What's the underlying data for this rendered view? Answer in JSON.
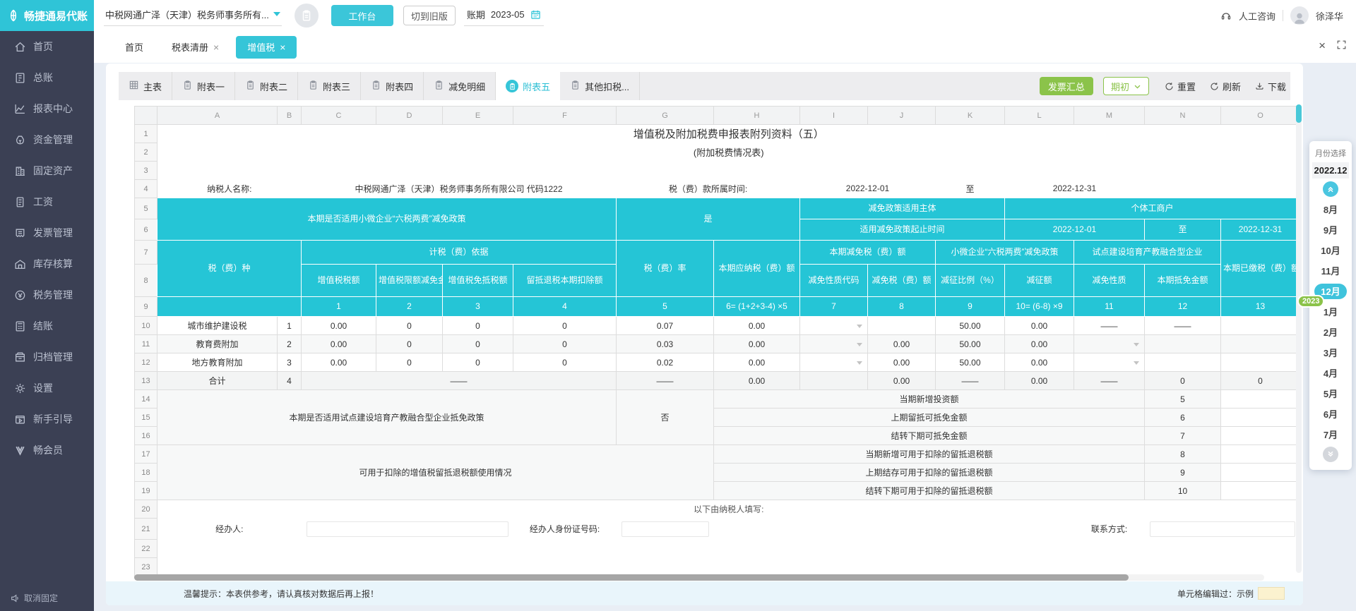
{
  "topbar": {
    "logo": "畅捷通易代账",
    "company": "中税网通广泽（天津）税务师事务所有...",
    "workbench": "工作台",
    "switch_old": "切到旧版",
    "period_label": "账期",
    "period_value": "2023-05",
    "support": "人工咨询",
    "user": "徐泽华",
    "accent": "#2fc4d7"
  },
  "sidebar": {
    "items": [
      {
        "id": "home",
        "icon": "home-icon",
        "label": "首页"
      },
      {
        "id": "ledger",
        "icon": "ledger-icon",
        "label": "总账"
      },
      {
        "id": "report",
        "icon": "chart-icon",
        "label": "报表中心"
      },
      {
        "id": "funds",
        "icon": "money-bag-icon",
        "label": "资金管理"
      },
      {
        "id": "assets",
        "icon": "building-icon",
        "label": "固定资产"
      },
      {
        "id": "salary",
        "icon": "document-icon",
        "label": "工资"
      },
      {
        "id": "invoice",
        "icon": "invoice-icon",
        "label": "发票管理"
      },
      {
        "id": "inventory",
        "icon": "warehouse-icon",
        "label": "库存核算"
      },
      {
        "id": "tax",
        "icon": "tax-coin-icon",
        "label": "税务管理"
      },
      {
        "id": "closing",
        "icon": "calculator-icon",
        "label": "结账"
      },
      {
        "id": "archive",
        "icon": "archive-box-icon",
        "label": "归档管理"
      },
      {
        "id": "settings",
        "icon": "gear-icon",
        "label": "设置"
      },
      {
        "id": "guide",
        "icon": "video-icon",
        "label": "新手引导"
      },
      {
        "id": "member",
        "icon": "v-member-icon",
        "label": "畅会员"
      }
    ],
    "unpin": "取消固定"
  },
  "tabs": {
    "items": [
      {
        "id": "home",
        "label": "首页",
        "closable": false,
        "active": false
      },
      {
        "id": "taxlist",
        "label": "税表清册",
        "closable": true,
        "active": false
      },
      {
        "id": "vat",
        "label": "增值税",
        "closable": true,
        "active": true
      }
    ]
  },
  "sheet_tabs": {
    "items": [
      {
        "id": "main",
        "label": "主表",
        "icon": "table-grid-icon",
        "active": false
      },
      {
        "id": "fb1",
        "label": "附表一",
        "icon": "clipboard-icon",
        "active": false
      },
      {
        "id": "fb2",
        "label": "附表二",
        "icon": "clipboard-icon",
        "active": false
      },
      {
        "id": "fb3",
        "label": "附表三",
        "icon": "clipboard-icon",
        "active": false
      },
      {
        "id": "fb4",
        "label": "附表四",
        "icon": "clipboard-icon",
        "active": false
      },
      {
        "id": "jmmx",
        "label": "减免明细",
        "icon": "clipboard-icon",
        "active": false
      },
      {
        "id": "fb5",
        "label": "附表五",
        "icon": "clipboard-icon",
        "active": true
      },
      {
        "id": "other",
        "label": "其他扣税...",
        "icon": "clipboard-icon",
        "active": false
      }
    ]
  },
  "toolbar": {
    "invoice_summary": "发票汇总",
    "period_init": "期初",
    "reset": "重置",
    "refresh": "刷新",
    "download": "下载",
    "green": "#8bc34a"
  },
  "grid": {
    "col_letters": [
      "A",
      "B",
      "C",
      "D",
      "E",
      "F",
      "G",
      "H",
      "I",
      "J",
      "K",
      "L",
      "M",
      "N",
      "O"
    ],
    "header_cyan": "#25c5d6",
    "rows": [
      {
        "n": "1",
        "cells": [
          {
            "t": "增值税及附加税费申报表附列资料（五）",
            "c": 15,
            "k": "title"
          }
        ]
      },
      {
        "n": "2",
        "cells": [
          {
            "t": "(附加税费情况表)",
            "c": 15,
            "k": "subtitle"
          }
        ]
      },
      {
        "n": "3",
        "cells": [
          {
            "t": "",
            "c": 15
          }
        ]
      },
      {
        "n": "4",
        "cells": [
          {
            "t": "纳税人名称:",
            "c": 2,
            "k": "right"
          },
          {
            "t": "中税网通广泽（天津）税务师事务所有限公司 代码1222",
            "c": 4,
            "k": "left"
          },
          {
            "t": "税（费）款所属时间:",
            "c": 2,
            "k": "right"
          },
          {
            "t": "2022-12-01",
            "c": 2
          },
          {
            "t": "至",
            "c": 1
          },
          {
            "t": "2022-12-31",
            "c": 2
          },
          {
            "t": "",
            "c": 2
          }
        ]
      },
      {
        "n": "5",
        "cells": [
          {
            "t": "本期是否适用小微企业“六税两费”减免政策",
            "c": 6,
            "r": 2,
            "k": "hdr"
          },
          {
            "t": "是",
            "c": 2,
            "r": 2,
            "k": "hdr"
          },
          {
            "t": "减免政策适用主体",
            "c": 3,
            "k": "hdr"
          },
          {
            "t": "个体工商户",
            "c": 4,
            "k": "hdr"
          }
        ]
      },
      {
        "n": "6",
        "cells": [
          {
            "t": "适用减免政策起止时间",
            "c": 3,
            "k": "hdr"
          },
          {
            "t": "2022-12-01",
            "c": 2,
            "k": "hdr"
          },
          {
            "t": "至",
            "c": 1,
            "k": "hdr"
          },
          {
            "t": "2022-12-31",
            "c": 1,
            "k": "hdr"
          }
        ]
      },
      {
        "n": "7",
        "cells": [
          {
            "t": "税（费）种",
            "c": 2,
            "r": 2,
            "k": "hdr"
          },
          {
            "t": "计税（费）依据",
            "c": 4,
            "k": "hdr"
          },
          {
            "t": "税（费）率",
            "r": 2,
            "k": "hdr"
          },
          {
            "t": "本期应纳税（费）额",
            "r": 2,
            "k": "hdr"
          },
          {
            "t": "本期减免税（费）额",
            "c": 2,
            "k": "hdr"
          },
          {
            "t": "小微企业“六税两费”减免政策",
            "c": 2,
            "k": "hdr"
          },
          {
            "t": "试点建设培育产教融合型企业",
            "c": 2,
            "k": "hdr"
          },
          {
            "t": "本期已缴税（费）额",
            "r": 2,
            "k": "hdr"
          }
        ]
      },
      {
        "n": "8",
        "cells": [
          {
            "t": "增值税税额",
            "k": "hdr"
          },
          {
            "t": "增值税限额减免金额",
            "k": "hdr"
          },
          {
            "t": "增值税免抵税额",
            "k": "hdr"
          },
          {
            "t": "留抵退税本期扣除额",
            "k": "hdr"
          },
          {
            "t": "减免性质代码",
            "k": "hdr"
          },
          {
            "t": "减免税（费）额",
            "k": "hdr"
          },
          {
            "t": "减征比例（%）",
            "k": "hdr"
          },
          {
            "t": "减征额",
            "k": "hdr"
          },
          {
            "t": "减免性质",
            "k": "hdr"
          },
          {
            "t": "本期抵免金额",
            "k": "hdr"
          }
        ]
      },
      {
        "n": "9",
        "cells": [
          {
            "t": "",
            "c": 2,
            "k": "hdr"
          },
          {
            "t": "1",
            "k": "hdr"
          },
          {
            "t": "2",
            "k": "hdr"
          },
          {
            "t": "3",
            "k": "hdr"
          },
          {
            "t": "4",
            "k": "hdr"
          },
          {
            "t": "5",
            "k": "hdr"
          },
          {
            "t": "6= (1+2+3-4) ×5",
            "k": "hdr"
          },
          {
            "t": "7",
            "k": "hdr"
          },
          {
            "t": "8",
            "k": "hdr"
          },
          {
            "t": "9",
            "k": "hdr"
          },
          {
            "t": "10= (6-8) ×9",
            "k": "hdr"
          },
          {
            "t": "11",
            "k": "hdr"
          },
          {
            "t": "12",
            "k": "hdr"
          },
          {
            "t": "13",
            "k": "hdr"
          }
        ]
      },
      {
        "n": "10",
        "b": 1,
        "cells": [
          {
            "t": "城市维护建设税",
            "k": "left"
          },
          {
            "t": "1"
          },
          {
            "t": "0.00"
          },
          {
            "t": "0"
          },
          {
            "t": "0"
          },
          {
            "t": "0"
          },
          {
            "t": "0.07"
          },
          {
            "t": "0.00"
          },
          {
            "t": "",
            "k": "dd"
          },
          {
            "t": ""
          },
          {
            "t": "50.00"
          },
          {
            "t": "0.00"
          },
          {
            "t": "——"
          },
          {
            "t": "——"
          },
          {
            "t": ""
          }
        ]
      },
      {
        "n": "11",
        "b": 1,
        "bg": "alt",
        "cells": [
          {
            "t": "教育费附加",
            "k": "left"
          },
          {
            "t": "2"
          },
          {
            "t": "0.00"
          },
          {
            "t": "0"
          },
          {
            "t": "0"
          },
          {
            "t": "0"
          },
          {
            "t": "0.03"
          },
          {
            "t": "0.00"
          },
          {
            "t": "",
            "k": "dd"
          },
          {
            "t": "0.00"
          },
          {
            "t": "50.00"
          },
          {
            "t": "0.00"
          },
          {
            "t": "",
            "k": "dd"
          },
          {
            "t": ""
          },
          {
            "t": ""
          }
        ]
      },
      {
        "n": "12",
        "b": 1,
        "cells": [
          {
            "t": "地方教育附加",
            "k": "left"
          },
          {
            "t": "3"
          },
          {
            "t": "0.00"
          },
          {
            "t": "0"
          },
          {
            "t": "0"
          },
          {
            "t": "0"
          },
          {
            "t": "0.02"
          },
          {
            "t": "0.00"
          },
          {
            "t": "",
            "k": "dd"
          },
          {
            "t": "0.00"
          },
          {
            "t": "50.00"
          },
          {
            "t": "0.00"
          },
          {
            "t": "",
            "k": "dd"
          },
          {
            "t": ""
          },
          {
            "t": ""
          }
        ]
      },
      {
        "n": "13",
        "b": 1,
        "bg": "sum",
        "cells": [
          {
            "t": "合计"
          },
          {
            "t": "4"
          },
          {
            "t": "——",
            "c": 4
          },
          {
            "t": "——"
          },
          {
            "t": "0.00"
          },
          {
            "t": ""
          },
          {
            "t": "0.00"
          },
          {
            "t": "——"
          },
          {
            "t": "0.00"
          },
          {
            "t": "——"
          },
          {
            "t": "0"
          },
          {
            "t": "0"
          }
        ]
      },
      {
        "n": "14",
        "b": 1,
        "bg": "alt",
        "cells": [
          {
            "t": "本期是否适用试点建设培育产教融合型企业抵免政策",
            "c": 6,
            "r": 3
          },
          {
            "t": "否",
            "r": 3
          },
          {
            "t": "当期新增投资额",
            "c": 6
          },
          {
            "t": "5"
          },
          {
            "t": "",
            "k": "input"
          }
        ]
      },
      {
        "n": "15",
        "b": 1,
        "bg": "alt",
        "cells": [
          {
            "t": "上期留抵可抵免金额",
            "c": 6
          },
          {
            "t": "6"
          },
          {
            "t": "",
            "k": "input"
          }
        ]
      },
      {
        "n": "16",
        "b": 1,
        "bg": "alt",
        "cells": [
          {
            "t": "结转下期可抵免金额",
            "c": 6
          },
          {
            "t": "7"
          },
          {
            "t": "",
            "k": "input"
          }
        ]
      },
      {
        "n": "17",
        "b": 1,
        "bg": "alt",
        "cells": [
          {
            "t": "可用于扣除的增值税留抵退税额使用情况",
            "c": 7,
            "r": 3
          },
          {
            "t": "当期新增可用于扣除的留抵退税额",
            "c": 6
          },
          {
            "t": "8"
          },
          {
            "t": "",
            "k": "input"
          }
        ]
      },
      {
        "n": "18",
        "b": 1,
        "bg": "alt",
        "cells": [
          {
            "t": "上期结存可用于扣除的留抵退税额",
            "c": 6
          },
          {
            "t": "9"
          },
          {
            "t": "",
            "k": "input"
          }
        ]
      },
      {
        "n": "19",
        "b": 1,
        "bg": "alt",
        "cells": [
          {
            "t": "结转下期可用于扣除的留抵退税额",
            "c": 6
          },
          {
            "t": "10"
          },
          {
            "t": "",
            "k": "input"
          }
        ]
      },
      {
        "n": "20",
        "cells": [
          {
            "t": "以下由纳税人填写:",
            "c": 15,
            "k": "left note"
          }
        ]
      },
      {
        "n": "21",
        "cells": [
          {
            "t": "经办人:",
            "c": 2,
            "k": "right"
          },
          {
            "t": "",
            "c": 3,
            "k": "inputbox"
          },
          {
            "t": "经办人身份证号码:",
            "c": 1,
            "k": "right"
          },
          {
            "t": "",
            "c": 1,
            "k": "inputbox"
          },
          {
            "t": "",
            "c": 5
          },
          {
            "t": "联系方式:",
            "c": 1,
            "k": "right"
          },
          {
            "t": "",
            "c": 2,
            "k": "inputbox"
          }
        ]
      },
      {
        "n": "22",
        "cells": [
          {
            "t": "",
            "c": 15
          }
        ]
      },
      {
        "n": "23",
        "cells": [
          {
            "t": "",
            "c": 15
          }
        ]
      }
    ]
  },
  "bottombar": {
    "tip": "温馨提示：本表供参考，请认真核对数据后再上报！",
    "edited_label": "单元格编辑过：示例",
    "swatch_color": "#fbf2cf"
  },
  "month_panel": {
    "title": "月份选择",
    "current": "2022.12",
    "months": [
      "8月",
      "9月",
      "10月",
      "11月",
      "12月",
      "1月",
      "2月",
      "3月",
      "4月",
      "5月",
      "6月",
      "7月"
    ],
    "active_month": "12月",
    "year_badge": "2023"
  }
}
